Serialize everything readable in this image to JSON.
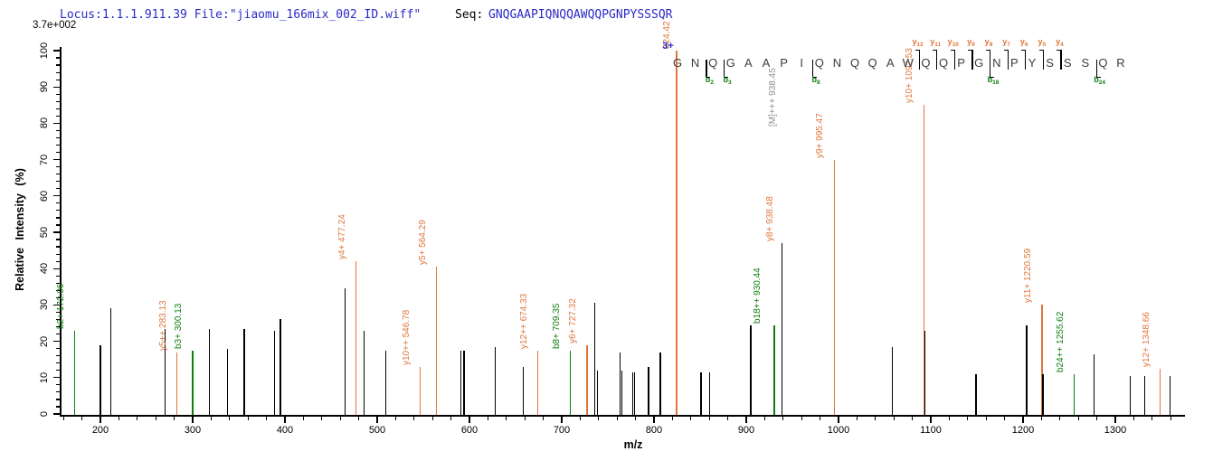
{
  "header": {
    "locus": "Locus:1.1.1.911.39 File:\"jiaomu_166mix_002_ID.wiff\"",
    "seq_label": "Seq:",
    "sequence": "GNQGAAPIQNQQAWQQPGNPYSSSQR",
    "max_intensity": "3.7e+002"
  },
  "colors": {
    "orange": "#E0763C",
    "green": "#0E7F0E",
    "blue": "#2A2AC8",
    "gray": "#8F8F8F",
    "black": "#000000",
    "letter": "#3C3C3C"
  },
  "chart_data": {
    "type": "bar",
    "title": "",
    "xlabel": "m/z",
    "ylabel": "Relative Intensity (%)",
    "xlim": [
      158,
      1375
    ],
    "ylim": [
      0,
      100
    ],
    "x_major_ticks": [
      200,
      300,
      400,
      500,
      600,
      700,
      800,
      900,
      1000,
      1100,
      1200,
      1300
    ],
    "x_minor_step": 20,
    "y_major_step": 10,
    "y_minor_step": 2,
    "grid": false,
    "peaks": [
      {
        "mz": 172.06,
        "intensity": 23,
        "color": "green",
        "label": "b2+ 172.06"
      },
      {
        "mz": 200,
        "intensity": 19,
        "color": "black"
      },
      {
        "mz": 211,
        "intensity": 29,
        "color": "black"
      },
      {
        "mz": 270,
        "intensity": 23.5,
        "color": "black"
      },
      {
        "mz": 283.13,
        "intensity": 17,
        "color": "orange",
        "label": "y5++ 283.13"
      },
      {
        "mz": 300.13,
        "intensity": 17.5,
        "color": "green",
        "label": "b3+ 300.13"
      },
      {
        "mz": 318,
        "intensity": 23.5,
        "color": "black"
      },
      {
        "mz": 338,
        "intensity": 18,
        "color": "black"
      },
      {
        "mz": 356,
        "intensity": 23.5,
        "color": "black"
      },
      {
        "mz": 389,
        "intensity": 23,
        "color": "black"
      },
      {
        "mz": 395,
        "intensity": 26,
        "color": "black"
      },
      {
        "mz": 465,
        "intensity": 34.5,
        "color": "black"
      },
      {
        "mz": 477.24,
        "intensity": 42,
        "color": "orange",
        "label": "y4+ 477.24"
      },
      {
        "mz": 486,
        "intensity": 23,
        "color": "black"
      },
      {
        "mz": 509,
        "intensity": 17.5,
        "color": "black"
      },
      {
        "mz": 546.78,
        "intensity": 13,
        "color": "orange",
        "label": "y10++ 546.78"
      },
      {
        "mz": 564.29,
        "intensity": 40.5,
        "color": "orange",
        "label": "y5+ 564.29"
      },
      {
        "mz": 591,
        "intensity": 17.5,
        "color": "black"
      },
      {
        "mz": 594,
        "intensity": 17.5,
        "color": "black"
      },
      {
        "mz": 628,
        "intensity": 18.5,
        "color": "black"
      },
      {
        "mz": 658,
        "intensity": 13,
        "color": "black"
      },
      {
        "mz": 674.33,
        "intensity": 17.5,
        "color": "orange",
        "label": "y12++ 674.33"
      },
      {
        "mz": 709.35,
        "intensity": 17.5,
        "color": "green",
        "label": "b8+ 709.35"
      },
      {
        "mz": 727.32,
        "intensity": 19,
        "color": "orange",
        "label": "y6+ 727.32"
      },
      {
        "mz": 736,
        "intensity": 30.5,
        "color": "black"
      },
      {
        "mz": 739,
        "intensity": 12,
        "color": "black"
      },
      {
        "mz": 763,
        "intensity": 17,
        "color": "black"
      },
      {
        "mz": 765,
        "intensity": 12,
        "color": "black"
      },
      {
        "mz": 777,
        "intensity": 11.5,
        "color": "black"
      },
      {
        "mz": 779,
        "intensity": 11.5,
        "color": "black"
      },
      {
        "mz": 794,
        "intensity": 13,
        "color": "black"
      },
      {
        "mz": 807,
        "intensity": 17,
        "color": "black"
      },
      {
        "mz": 824.42,
        "intensity": 100,
        "color": "orange",
        "label": "824.42",
        "label_dx": 5
      },
      {
        "mz": 851,
        "intensity": 11.5,
        "color": "black"
      },
      {
        "mz": 860,
        "intensity": 11.5,
        "color": "black"
      },
      {
        "mz": 905,
        "intensity": 24.5,
        "color": "black"
      },
      {
        "mz": 930.44,
        "intensity": 24.5,
        "color": "green",
        "label": "b18++ 930.44",
        "label_dx": -3
      },
      {
        "mz": 938.48,
        "intensity": 47,
        "color": "black",
        "label": "y8+ 938.48",
        "label_color": "orange",
        "label_dx": 3
      },
      {
        "mz": 995.47,
        "intensity": 70,
        "color": "orange",
        "label": "y9+ 995.47"
      },
      {
        "mz": 1058,
        "intensity": 18.5,
        "color": "black"
      },
      {
        "mz": 1092.53,
        "intensity": 85,
        "color": "orange",
        "label": "y10+ 1092.53"
      },
      {
        "mz": 1093.5,
        "intensity": 23,
        "color": "black"
      },
      {
        "mz": 1149,
        "intensity": 11,
        "color": "black"
      },
      {
        "mz": 1204,
        "intensity": 24.5,
        "color": "black"
      },
      {
        "mz": 1220.59,
        "intensity": 30,
        "color": "orange",
        "label": "y11+ 1220.59"
      },
      {
        "mz": 1221.5,
        "intensity": 11,
        "color": "black"
      },
      {
        "mz": 1255.62,
        "intensity": 11,
        "color": "green",
        "label": "b24++ 1255.62"
      },
      {
        "mz": 1277,
        "intensity": 16.5,
        "color": "black"
      },
      {
        "mz": 1316,
        "intensity": 10.5,
        "color": "black"
      },
      {
        "mz": 1332,
        "intensity": 10.5,
        "color": "black"
      },
      {
        "mz": 1348.66,
        "intensity": 12.5,
        "color": "orange",
        "label": "y12+ 1348.66"
      },
      {
        "mz": 1359,
        "intensity": 10.5,
        "color": "black"
      }
    ],
    "annotations": [
      {
        "text": "3+",
        "color": "blue",
        "mz": 815,
        "y_pct": 100,
        "rotated": false,
        "bold": true,
        "name": "precursor-charge-label"
      },
      {
        "text": "[M]+++ 938.45",
        "color": "gray",
        "mz": 944,
        "y_pct": 79,
        "rotated": true,
        "bold": false,
        "name": "parent-ion-label"
      }
    ],
    "peptide": {
      "residues": [
        "G",
        "N",
        "Q",
        "G",
        "A",
        "A",
        "P",
        "I",
        "Q",
        "N",
        "Q",
        "Q",
        "A",
        "W",
        "Q",
        "Q",
        "P",
        "G",
        "N",
        "P",
        "Y",
        "S",
        "S",
        "S",
        "Q",
        "R"
      ],
      "b_ions": [
        {
          "sub": "2",
          "after": 2
        },
        {
          "sub": "3",
          "after": 3
        },
        {
          "sub": "8",
          "after": 8
        },
        {
          "sub": "18",
          "after": 18
        },
        {
          "sub": "24",
          "after": 24
        }
      ],
      "y_ions": [
        {
          "sub": "12",
          "after": 14
        },
        {
          "sub": "11",
          "after": 15
        },
        {
          "sub": "10",
          "after": 16
        },
        {
          "sub": "9",
          "after": 17
        },
        {
          "sub": "8",
          "after": 18
        },
        {
          "sub": "7",
          "after": 19
        },
        {
          "sub": "6",
          "after": 20
        },
        {
          "sub": "5",
          "after": 21
        },
        {
          "sub": "4",
          "after": 22
        }
      ]
    }
  }
}
